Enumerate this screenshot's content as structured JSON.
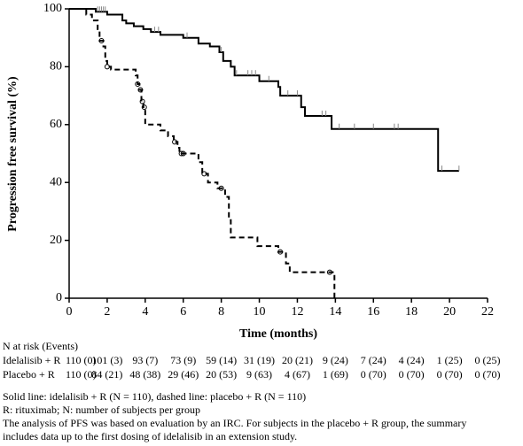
{
  "chart_data": {
    "type": "line",
    "ylabel": "Progression free survival (%)",
    "xlabel": "Time (months)",
    "xlim": [
      0,
      22
    ],
    "xticks": [
      0,
      2,
      4,
      6,
      8,
      10,
      12,
      14,
      16,
      18,
      20,
      22
    ],
    "ylim": [
      0,
      100
    ],
    "yticks": [
      0,
      20,
      40,
      60,
      80,
      100
    ],
    "grid": false,
    "series": [
      {
        "color": "#000000",
        "dash": "solid",
        "x": [
          0,
          1.4,
          2.0,
          2.8,
          3.0,
          3.4,
          3.9,
          4.3,
          4.8,
          6.0,
          6.8,
          7.4,
          7.9,
          8.1,
          8.5,
          8.7,
          10.0,
          11.0,
          11.1,
          12.2,
          12.4,
          13.8,
          19.4,
          20.5
        ],
        "values": [
          100,
          99,
          98,
          96,
          95,
          94,
          93,
          92,
          91,
          90,
          88,
          87,
          85,
          82,
          80,
          77,
          75,
          73,
          70,
          66,
          63,
          58.5,
          44,
          44
        ],
        "censored": [
          1.5,
          1.6,
          1.7,
          1.8,
          1.9,
          4.5,
          4.7,
          6.2,
          8.0,
          8.8,
          9.4,
          9.6,
          9.8,
          10.5,
          11.5,
          12.0,
          13.3,
          13.5,
          14.2,
          15.0,
          16.0,
          17.1,
          17.3,
          19.6,
          20.5
        ]
      },
      {
        "color": "#000000",
        "dash": "dashed",
        "x": [
          0,
          0.9,
          1.2,
          1.5,
          1.6,
          1.8,
          1.9,
          2.0,
          2.2,
          3.5,
          3.6,
          3.7,
          3.8,
          3.9,
          4.0,
          4.8,
          5.2,
          5.5,
          5.7,
          5.8,
          6.8,
          7.0,
          7.3,
          7.8,
          8.2,
          8.4,
          8.5,
          9.9,
          11.0,
          11.4,
          11.6,
          13.95
        ],
        "values": [
          100,
          98,
          96,
          93,
          89,
          87,
          82,
          80,
          79,
          77,
          74,
          72,
          68,
          66,
          60,
          58,
          56,
          54,
          52,
          50,
          47,
          43,
          40,
          38,
          35,
          27,
          21,
          18,
          16,
          12,
          9,
          0
        ],
        "censored": [
          1.7,
          2.0,
          3.6,
          3.75,
          3.85,
          3.95,
          5.55,
          5.9,
          6.0,
          7.1,
          8.0,
          11.1,
          13.7
        ]
      }
    ]
  },
  "risk_table": {
    "title": "N at risk (Events)",
    "rows": [
      {
        "label": "Idelalisib + R",
        "cells": [
          "110 (0)",
          "101 (3)",
          "93 (7)",
          "73 (9)",
          "59 (14)",
          "31 (19)",
          "20 (21)",
          "9 (24)",
          "7 (24)",
          "4 (24)",
          "1 (25)",
          "0 (25)"
        ]
      },
      {
        "label": "Placebo + R",
        "cells": [
          "110 (0)",
          "84 (21)",
          "48 (38)",
          "29 (46)",
          "20 (53)",
          "9 (63)",
          "4 (67)",
          "1 (69)",
          "0 (70)",
          "0 (70)",
          "0 (70)",
          "0 (70)"
        ]
      }
    ]
  },
  "notes": [
    "Solid line: idelalisib + R (N = 110), dashed line: placebo + R (N = 110)",
    "R: rituximab; N: number of subjects per group",
    "The analysis of PFS was based on evaluation by an IRC.  For subjects in the placebo + R group, the summary",
    "includes data up to the first dosing of idelalisib in an extension study."
  ]
}
